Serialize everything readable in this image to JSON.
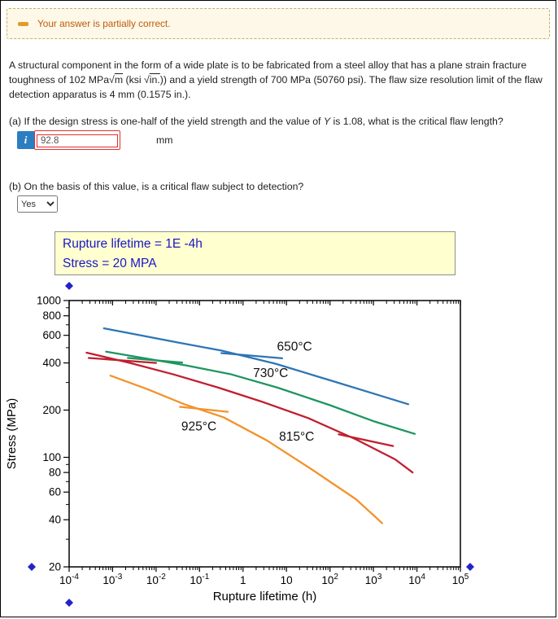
{
  "feedback": {
    "message": "Your answer is partially correct."
  },
  "problem": {
    "p1": "A structural component in the form of a wide plate is to be fabricated from a steel alloy that has a plane strain fracture toughness of 102 MPa√",
    "sqrt_m": "m",
    "p2": " (ksi √",
    "sqrt_in": "in.",
    "p3": ")) and a yield strength of 700 MPa (50760 psi). The flaw size resolution limit of the flaw detection apparatus is 4 mm (0.1575 in.)."
  },
  "question_a": {
    "pre": "(a) If the design stress is one-half of the yield strength and the value of ",
    "var": "Y",
    "post": " is 1.08, what is the critical flaw length?"
  },
  "answer_a": {
    "info_icon": "i",
    "value": "92.8",
    "unit": "mm"
  },
  "question_b": "(b) On the basis of this value, is a critical flaw subject to detection?",
  "answer_b": {
    "selected": "Yes"
  },
  "tooltip": {
    "line1": "Rupture lifetime = 1E -4h",
    "line2": "Stress = 20 MPA"
  },
  "chart_data": {
    "type": "line",
    "xlabel": "Rupture lifetime (h)",
    "ylabel": "Stress (MPa)",
    "x_scale": "log",
    "y_scale": "log",
    "x_range_log10": [
      -4,
      5
    ],
    "y_range": [
      20,
      1000
    ],
    "x_tick_exponents": [
      -4,
      -3,
      -2,
      -1,
      0,
      1,
      2,
      3,
      4,
      5
    ],
    "y_tick_labels": [
      1000,
      800,
      600,
      400,
      200,
      100,
      80,
      60,
      40,
      20
    ],
    "y_tick_minor": [
      900,
      700,
      500,
      300,
      90,
      70,
      50,
      30
    ],
    "legend": "none",
    "grid": false,
    "series": [
      {
        "name": "650°C",
        "color": "#2e75b6",
        "points_logx_stress": [
          [
            -3.2,
            665
          ],
          [
            -2.5,
            610
          ],
          [
            -1.5,
            540
          ],
          [
            -0.5,
            480
          ],
          [
            0.75,
            395
          ],
          [
            2.0,
            310
          ],
          [
            3.0,
            255
          ],
          [
            3.8,
            218
          ]
        ]
      },
      {
        "name": "730°C",
        "color": "#1e9660",
        "points_logx_stress": [
          [
            -3.15,
            472
          ],
          [
            -2.3,
            430
          ],
          [
            -1.3,
            385
          ],
          [
            -0.3,
            340
          ],
          [
            0.8,
            278
          ],
          [
            2.0,
            215
          ],
          [
            3.0,
            170
          ],
          [
            3.95,
            141
          ]
        ]
      },
      {
        "name": "815°C",
        "color": "#c01f2f",
        "points_logx_stress": [
          [
            -3.6,
            465
          ],
          [
            -2.6,
            400
          ],
          [
            -1.6,
            338
          ],
          [
            -0.6,
            280
          ],
          [
            0.4,
            228
          ],
          [
            1.5,
            178
          ],
          [
            2.6,
            130
          ],
          [
            3.5,
            97
          ],
          [
            3.9,
            80
          ]
        ]
      },
      {
        "name": "925°C",
        "color": "#f2932c",
        "points_logx_stress": [
          [
            -3.05,
            332
          ],
          [
            -2.2,
            272
          ],
          [
            -1.35,
            218
          ],
          [
            -0.45,
            180
          ],
          [
            0.55,
            128
          ],
          [
            1.6,
            83
          ],
          [
            2.6,
            54
          ],
          [
            3.2,
            38
          ]
        ]
      }
    ],
    "overlay_segments": [
      {
        "series": "650°C",
        "color": "#2e75b6",
        "points_logx_stress": [
          [
            -0.5,
            462
          ],
          [
            0.9,
            428
          ]
        ]
      },
      {
        "series": "730°C",
        "color": "#1e9660",
        "points_logx_stress": [
          [
            -2.65,
            430
          ],
          [
            -1.4,
            402
          ]
        ]
      },
      {
        "series": "815°C",
        "color": "#c01f2f",
        "points_logx_stress": [
          [
            -3.55,
            430
          ],
          [
            -2.0,
            400
          ]
        ]
      },
      {
        "series": "815°C",
        "color": "#c01f2f",
        "points_logx_stress": [
          [
            2.2,
            140
          ],
          [
            3.45,
            118
          ]
        ]
      },
      {
        "series": "925°C",
        "color": "#f2932c",
        "points_logx_stress": [
          [
            -1.45,
            210
          ],
          [
            -0.35,
            195
          ]
        ]
      }
    ],
    "annotations": [
      {
        "text": "650°C",
        "x_log": 0.78,
        "stress": 480
      },
      {
        "text": "730°C",
        "x_log": 0.23,
        "stress": 325
      },
      {
        "text": "925°C",
        "x_log": -1.42,
        "stress": 148
      },
      {
        "text": "815°C",
        "x_log": 0.83,
        "stress": 128
      }
    ],
    "handle_color": "#2222cc"
  }
}
